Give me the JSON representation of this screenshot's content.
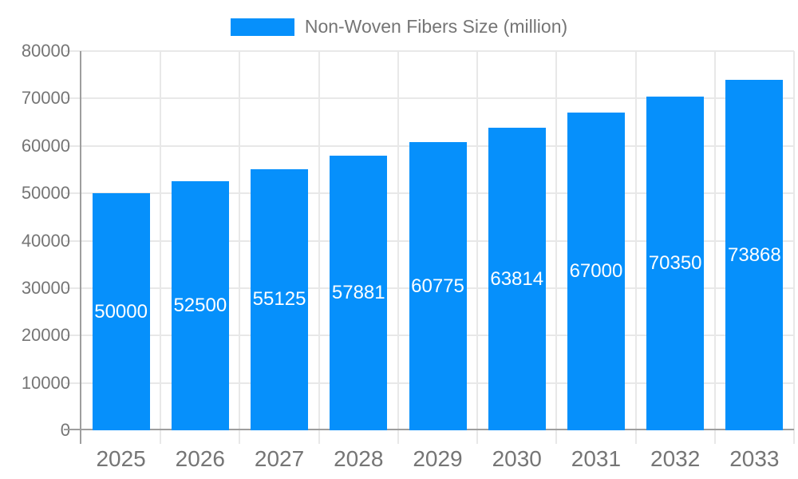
{
  "chart_data": {
    "type": "bar",
    "title": "Non-Woven Fibers Size (million)",
    "categories": [
      "2025",
      "2026",
      "2027",
      "2028",
      "2029",
      "2030",
      "2031",
      "2032",
      "2033"
    ],
    "values": [
      50000,
      52500,
      55125,
      57881,
      60775,
      63814,
      67000,
      70350,
      73868
    ],
    "bar_value_labels": [
      "50000",
      "52500",
      "55125",
      "57881",
      "60775",
      "63814",
      "67000",
      "70350",
      "73868"
    ],
    "xlabel": "",
    "ylabel": "",
    "ylim": [
      0,
      80000
    ],
    "ytick_interval": 10000,
    "ytick_labels": [
      "0",
      "10000",
      "20000",
      "30000",
      "40000",
      "50000",
      "60000",
      "70000",
      "80000"
    ],
    "legend_position": "top",
    "grid": true,
    "colors": {
      "bar": "#0690FB",
      "bar_label": "#FFFFFF",
      "axis_line": "#9E9E9E",
      "gridline": "#E8E8E8",
      "label_text": "#757575"
    }
  },
  "legend": {
    "label": "Non-Woven Fibers Size (million)"
  }
}
